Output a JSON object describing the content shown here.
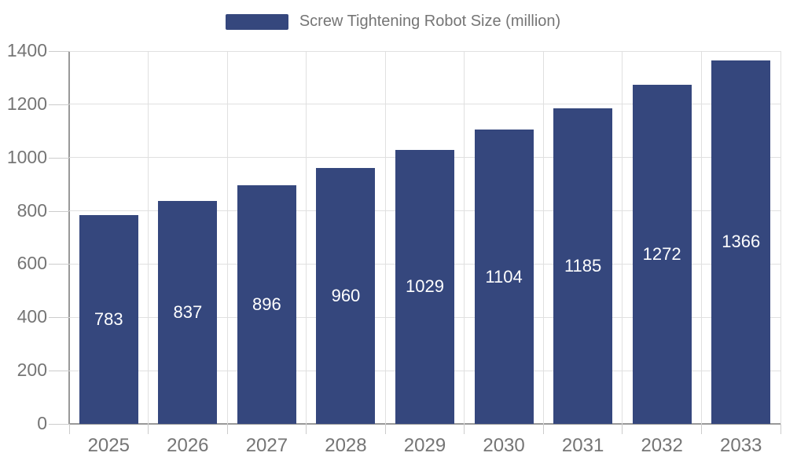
{
  "chart_data": {
    "type": "bar",
    "title": "Screw Tightening Robot Size (million)",
    "legend": [
      "Screw Tightening Robot Size (million)"
    ],
    "legend_position": "top",
    "categories": [
      "2025",
      "2026",
      "2027",
      "2028",
      "2029",
      "2030",
      "2031",
      "2032",
      "2033"
    ],
    "series": [
      {
        "name": "Screw Tightening Robot Size (million)",
        "values": [
          783,
          837,
          896,
          960,
          1029,
          1104,
          1185,
          1272,
          1366
        ]
      }
    ],
    "xlabel": "",
    "ylabel": "",
    "ylim": [
      0,
      1400
    ],
    "yticks": [
      0,
      200,
      400,
      600,
      800,
      1000,
      1200,
      1400
    ],
    "grid": true,
    "value_labels_shown": true,
    "colors": {
      "bar": "#35477d",
      "bar_value_label": "#ffffff",
      "axis_text": "#757575",
      "legend_text": "#757575",
      "gridline": "#e0e0e0",
      "axis_line": "#999999",
      "tick": "#cccccc",
      "background": "#ffffff"
    }
  }
}
